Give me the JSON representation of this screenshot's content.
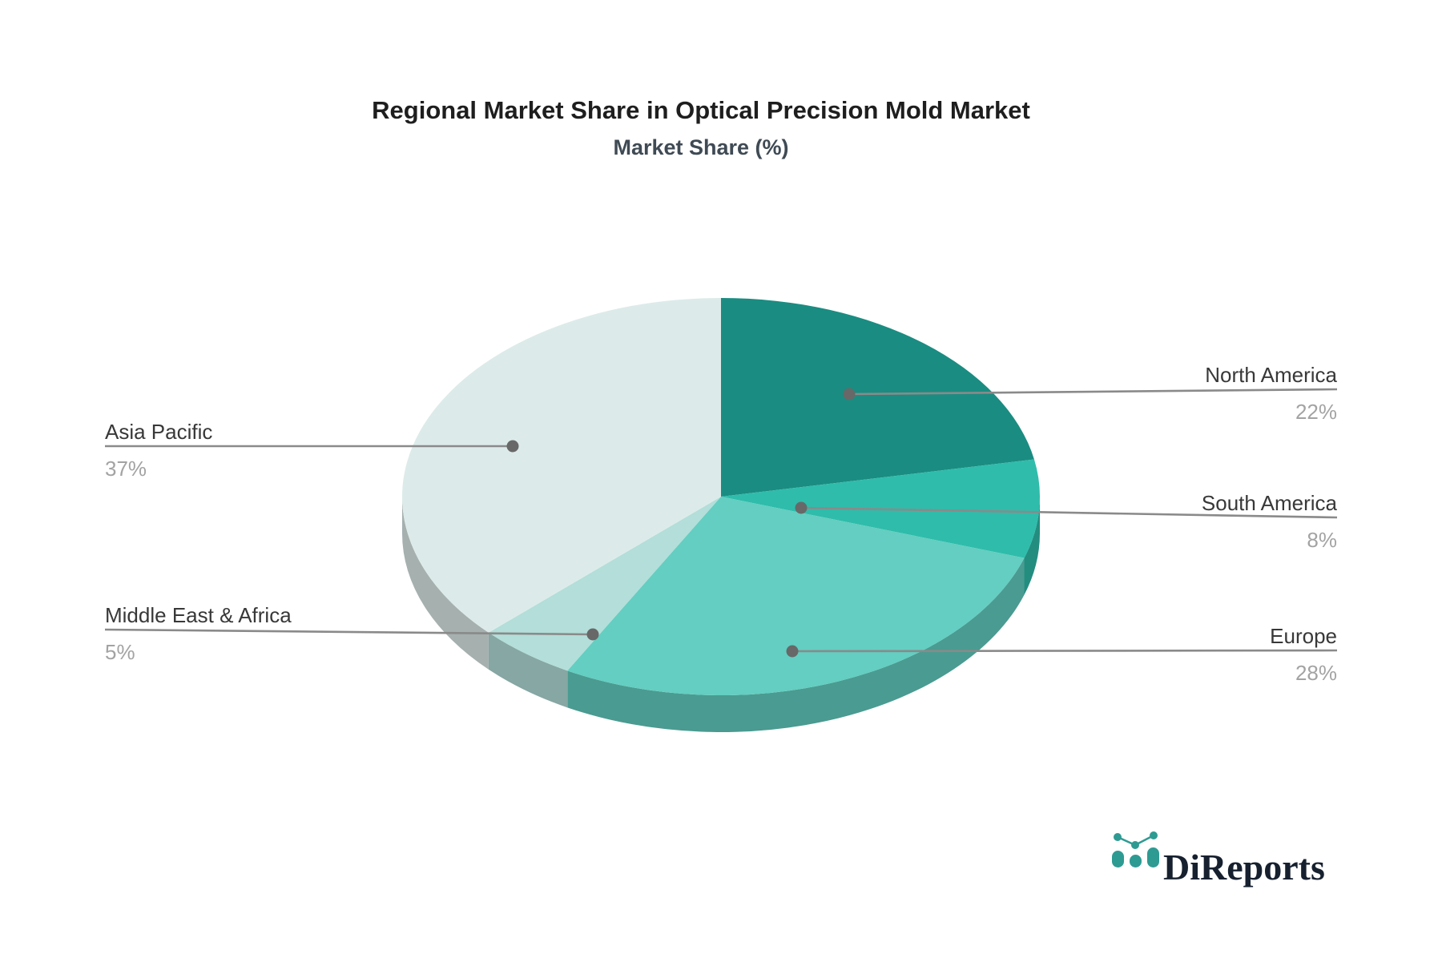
{
  "title": "Regional Market Share in Optical Precision Mold Market",
  "subtitle": "Market Share (%)",
  "brand": {
    "name": "DiReports",
    "icon": "bar-line-chart-icon",
    "icon_color": "#2E9B93",
    "text_color": "#16202F"
  },
  "chart_data": {
    "type": "pie",
    "style": "3d",
    "unit": "%",
    "title": "Regional Market Share in Optical Precision Mold Market",
    "subtitle": "Market Share (%)",
    "direction": "clockwise",
    "start_angle_deg": 0,
    "legend_position": "callout-labels",
    "series": [
      {
        "label": "North America",
        "value": 22,
        "display": "22%",
        "color": "#1B8C81"
      },
      {
        "label": "South America",
        "value": 8,
        "display": "8%",
        "color": "#2FBCAB"
      },
      {
        "label": "Europe",
        "value": 28,
        "display": "28%",
        "color": "#63CEC1"
      },
      {
        "label": "Middle East & Africa",
        "value": 5,
        "display": "5%",
        "color": "#B3DED9"
      },
      {
        "label": "Asia Pacific",
        "value": 37,
        "display": "37%",
        "color": "#DCEBE9"
      }
    ],
    "label_color": "#383838",
    "value_color": "#A3A3A3",
    "leader_color": "#8A8A8A",
    "background": "#FFFFFF"
  }
}
